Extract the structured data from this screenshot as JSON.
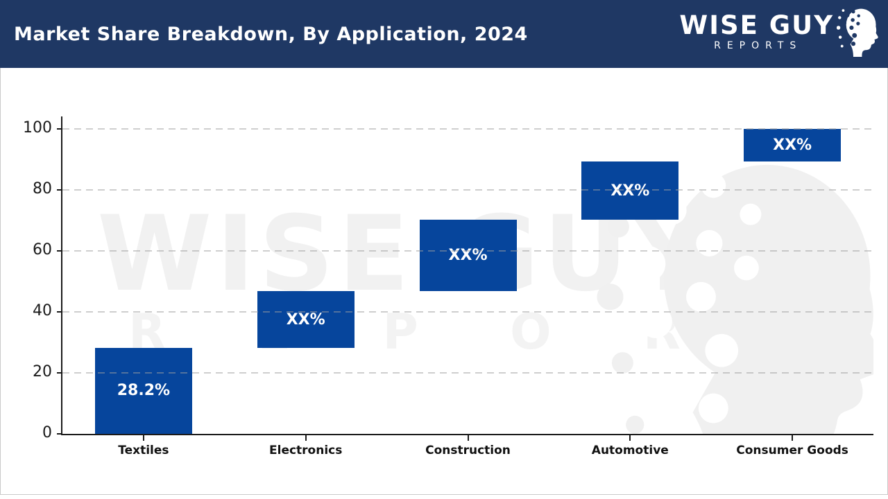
{
  "header": {
    "title": "Market Share Breakdown, By Application, 2024",
    "logo_line1": "WISE GUY",
    "logo_line2": "REPORTS"
  },
  "watermark": {
    "line1": "WISE GUY",
    "line2": "R E P O R T S"
  },
  "chart_data": {
    "type": "bar",
    "subtype": "floating-waterfall",
    "title": "Market Share Breakdown, By Application, 2024",
    "categories": [
      "Textiles",
      "Electronics",
      "Construction",
      "Automotive",
      "Consumer Goods"
    ],
    "segments": [
      {
        "category": "Textiles",
        "start": 0,
        "end": 28.2,
        "label": "28.2%"
      },
      {
        "category": "Electronics",
        "start": 28.2,
        "end": 46.7,
        "label": "XX%"
      },
      {
        "category": "Construction",
        "start": 46.7,
        "end": 70.2,
        "label": "XX%"
      },
      {
        "category": "Automotive",
        "start": 70.2,
        "end": 89.2,
        "label": "XX%"
      },
      {
        "category": "Consumer Goods",
        "start": 89.2,
        "end": 100,
        "label": "XX%"
      }
    ],
    "xlabel": "",
    "ylabel": "",
    "ylim": [
      0,
      104
    ],
    "yticks": [
      0,
      20,
      40,
      60,
      80,
      100
    ],
    "grid": {
      "axis": "y",
      "style": "dashed",
      "color": "#d9d9d9"
    },
    "legend": "none",
    "colors": {
      "bar": "#06459c",
      "bar_label": "#ffffff",
      "header_bg": "#1f3864",
      "axis": "#1a1a1a",
      "watermark": "#f0f0f0"
    }
  }
}
